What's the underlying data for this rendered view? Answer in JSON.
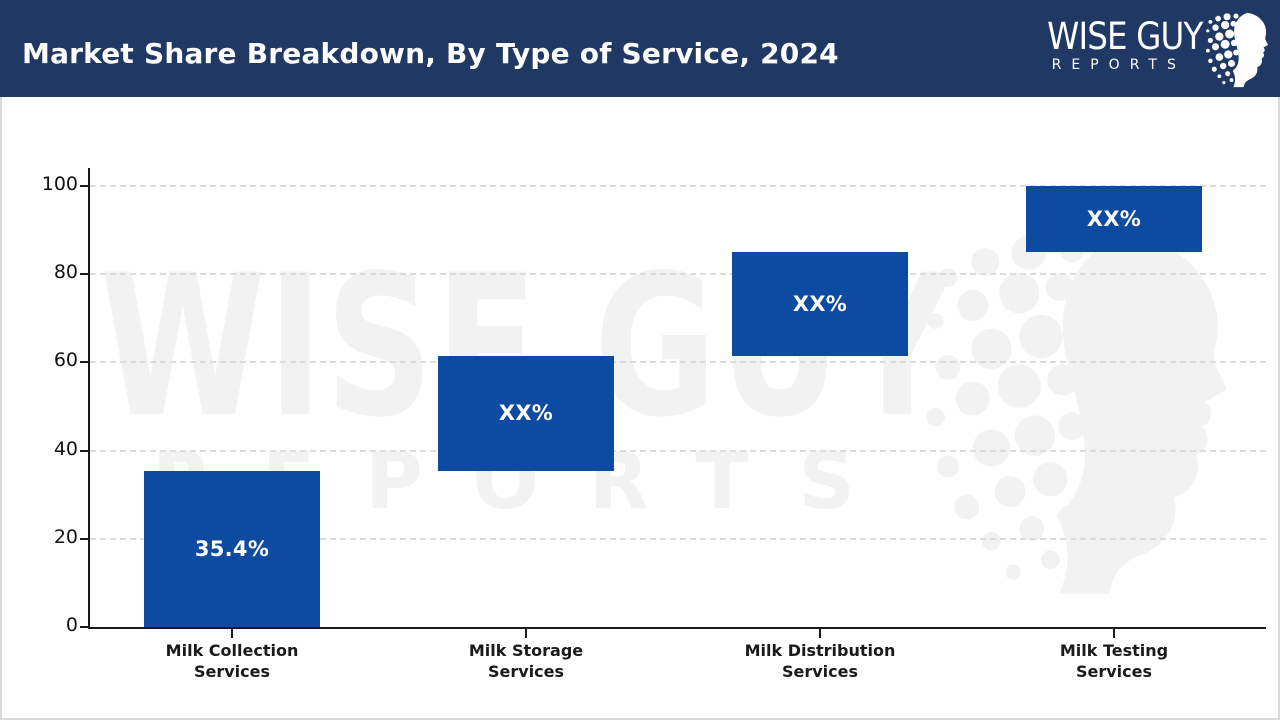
{
  "header": {
    "title": "Market Share Breakdown, By Type of Service, 2024",
    "logo": {
      "wordmark": "WISE GUY",
      "subtext": "REPORTS"
    }
  },
  "watermark": {
    "wordmark": "WISE GUY",
    "subtext": "REPORTS"
  },
  "colors": {
    "header_bg": "#1f3864",
    "bar": "#0d4aa1",
    "grid": "#dcdcdc",
    "axis": "#1a1a1a",
    "bar_label": "#ffffff",
    "frame": "#d9d9d9",
    "watermark": "#f2f2f2"
  },
  "icons": {
    "logo_head": "dotted-face-profile-icon"
  },
  "chart_data": {
    "type": "bar",
    "subtype": "waterfall",
    "title": "Market Share Breakdown, By Type of Service, 2024",
    "categories": [
      "Milk Collection Services",
      "Milk Storage Services",
      "Milk Distribution Services",
      "Milk Testing Services"
    ],
    "category_lines": [
      [
        "Milk Collection",
        "Services"
      ],
      [
        "Milk Storage",
        "Services"
      ],
      [
        "Milk Distribution",
        "Services"
      ],
      [
        "Milk Testing",
        "Services"
      ]
    ],
    "segments": [
      {
        "label": "35.4%",
        "start": 0,
        "end": 35.4
      },
      {
        "label": "XX%",
        "start": 35.4,
        "end": 61.5
      },
      {
        "label": "XX%",
        "start": 61.5,
        "end": 85
      },
      {
        "label": "XX%",
        "start": 85,
        "end": 100
      }
    ],
    "yticks": [
      0,
      20,
      40,
      60,
      80,
      100
    ],
    "ylim": [
      0,
      104
    ],
    "xlabel": "",
    "ylabel": "",
    "grid": "horizontal-dashed",
    "legend": "none"
  }
}
